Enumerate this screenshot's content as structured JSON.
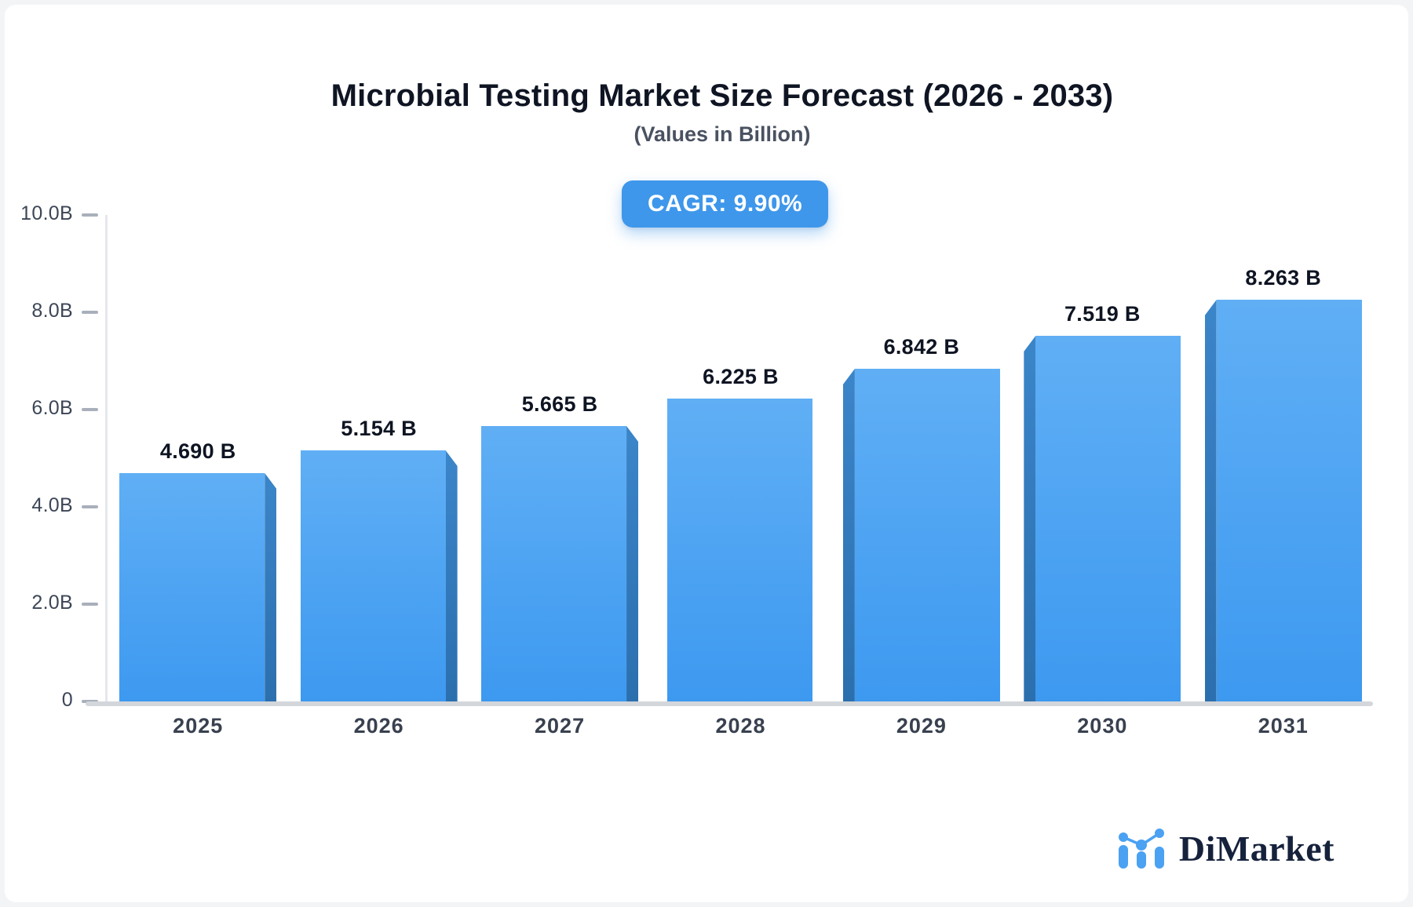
{
  "header": {
    "title": "Microbial Testing Market Size Forecast (2026 - 2033)",
    "subtitle": "(Values in Billion)",
    "cagr_badge": "CAGR: 9.90%"
  },
  "chart_data": {
    "type": "bar",
    "title": "Microbial Testing Market Size Forecast (2026 - 2033)",
    "subtitle": "(Values in Billion)",
    "cagr": "CAGR: 9.90%",
    "categories": [
      "2025",
      "2026",
      "2027",
      "2028",
      "2029",
      "2030",
      "2031"
    ],
    "values": [
      4.69,
      5.154,
      5.665,
      6.225,
      6.842,
      7.519,
      8.263
    ],
    "value_labels": [
      "4.690 B",
      "5.154 B",
      "5.665 B",
      "6.225 B",
      "6.842 B",
      "7.519 B",
      "8.263 B"
    ],
    "xlabel": "",
    "ylabel": "",
    "ylim": [
      0,
      10
    ],
    "grid": false,
    "legend": "none",
    "yticks": [
      {
        "value": 10,
        "label": "10.0B"
      },
      {
        "value": 8,
        "label": "8.0B"
      },
      {
        "value": 6,
        "label": "6.0B"
      },
      {
        "value": 4,
        "label": "4.0B"
      },
      {
        "value": 2,
        "label": "2.0B"
      },
      {
        "value": 0,
        "label": "0"
      }
    ],
    "colors": {
      "bar_top": "#60aff5",
      "bar_bottom": "#3d99f0",
      "bar_side_top": "#3b85c9",
      "bar_side_bottom": "#2b6fae",
      "badge_bg": "#3e97ea",
      "axis_line": "#e4e7eb",
      "baseline": "#d3d6da"
    }
  },
  "branding": {
    "name": "DiMarket",
    "logo_icon": "bar-line-chart-icon",
    "logo_blue": "#4ba1f2",
    "text_color": "#16223c"
  }
}
